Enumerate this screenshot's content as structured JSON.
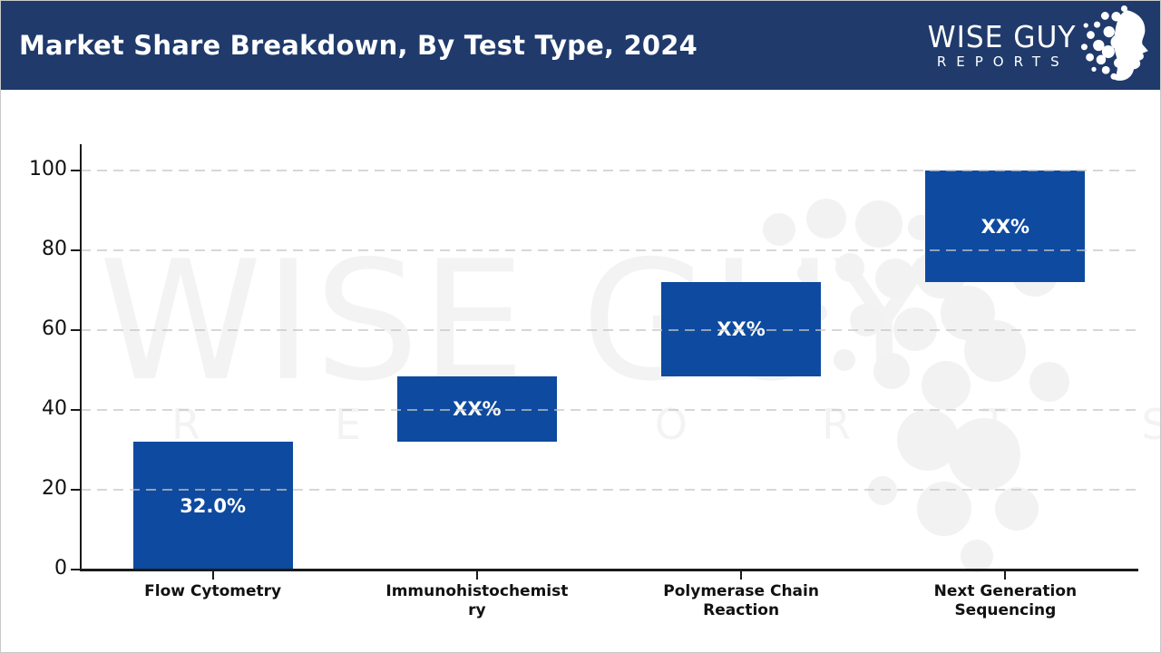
{
  "header": {
    "bg_color": "#1f3a6b",
    "title": "Market Share Breakdown, By Test Type, 2024",
    "logo": {
      "brand_line1": "WISE GUY",
      "brand_line2": "REPORTS"
    }
  },
  "watermark": {
    "line1": "WISE GUY",
    "line2": "REPORTS"
  },
  "chart_data": {
    "type": "bar",
    "subtype": "waterfall",
    "title": "Market Share Breakdown, By Test Type, 2024",
    "categories": [
      "Flow Cytometry",
      "Immunohistochemistry",
      "Polymerase Chain Reaction",
      "Next Generation Sequencing"
    ],
    "category_label_lines": [
      [
        "Flow Cytometry"
      ],
      [
        "Immunohistochemist",
        "ry"
      ],
      [
        "Polymerase Chain",
        "Reaction"
      ],
      [
        "Next Generation",
        "Sequencing"
      ]
    ],
    "series": [
      {
        "name": "Market share (%)",
        "segments": [
          {
            "category": "Flow Cytometry",
            "start": 0,
            "end": 32,
            "label": "32.0%"
          },
          {
            "category": "Immunohistochemistry",
            "start": 32,
            "end": 48.4,
            "label": "XX%"
          },
          {
            "category": "Polymerase Chain Reaction",
            "start": 48.4,
            "end": 72,
            "label": "XX%"
          },
          {
            "category": "Next Generation Sequencing",
            "start": 72,
            "end": 100,
            "label": "XX%"
          }
        ]
      }
    ],
    "ylim": [
      0,
      100
    ],
    "yticks": [
      0,
      20,
      40,
      60,
      80,
      100
    ],
    "xlabel": "",
    "ylabel": "",
    "grid": "horizontal-dashed",
    "legend": "none",
    "bar_color": "#0e4a9f",
    "bar_label_color": "#ffffff",
    "axis_color": "#1a1a1a"
  }
}
